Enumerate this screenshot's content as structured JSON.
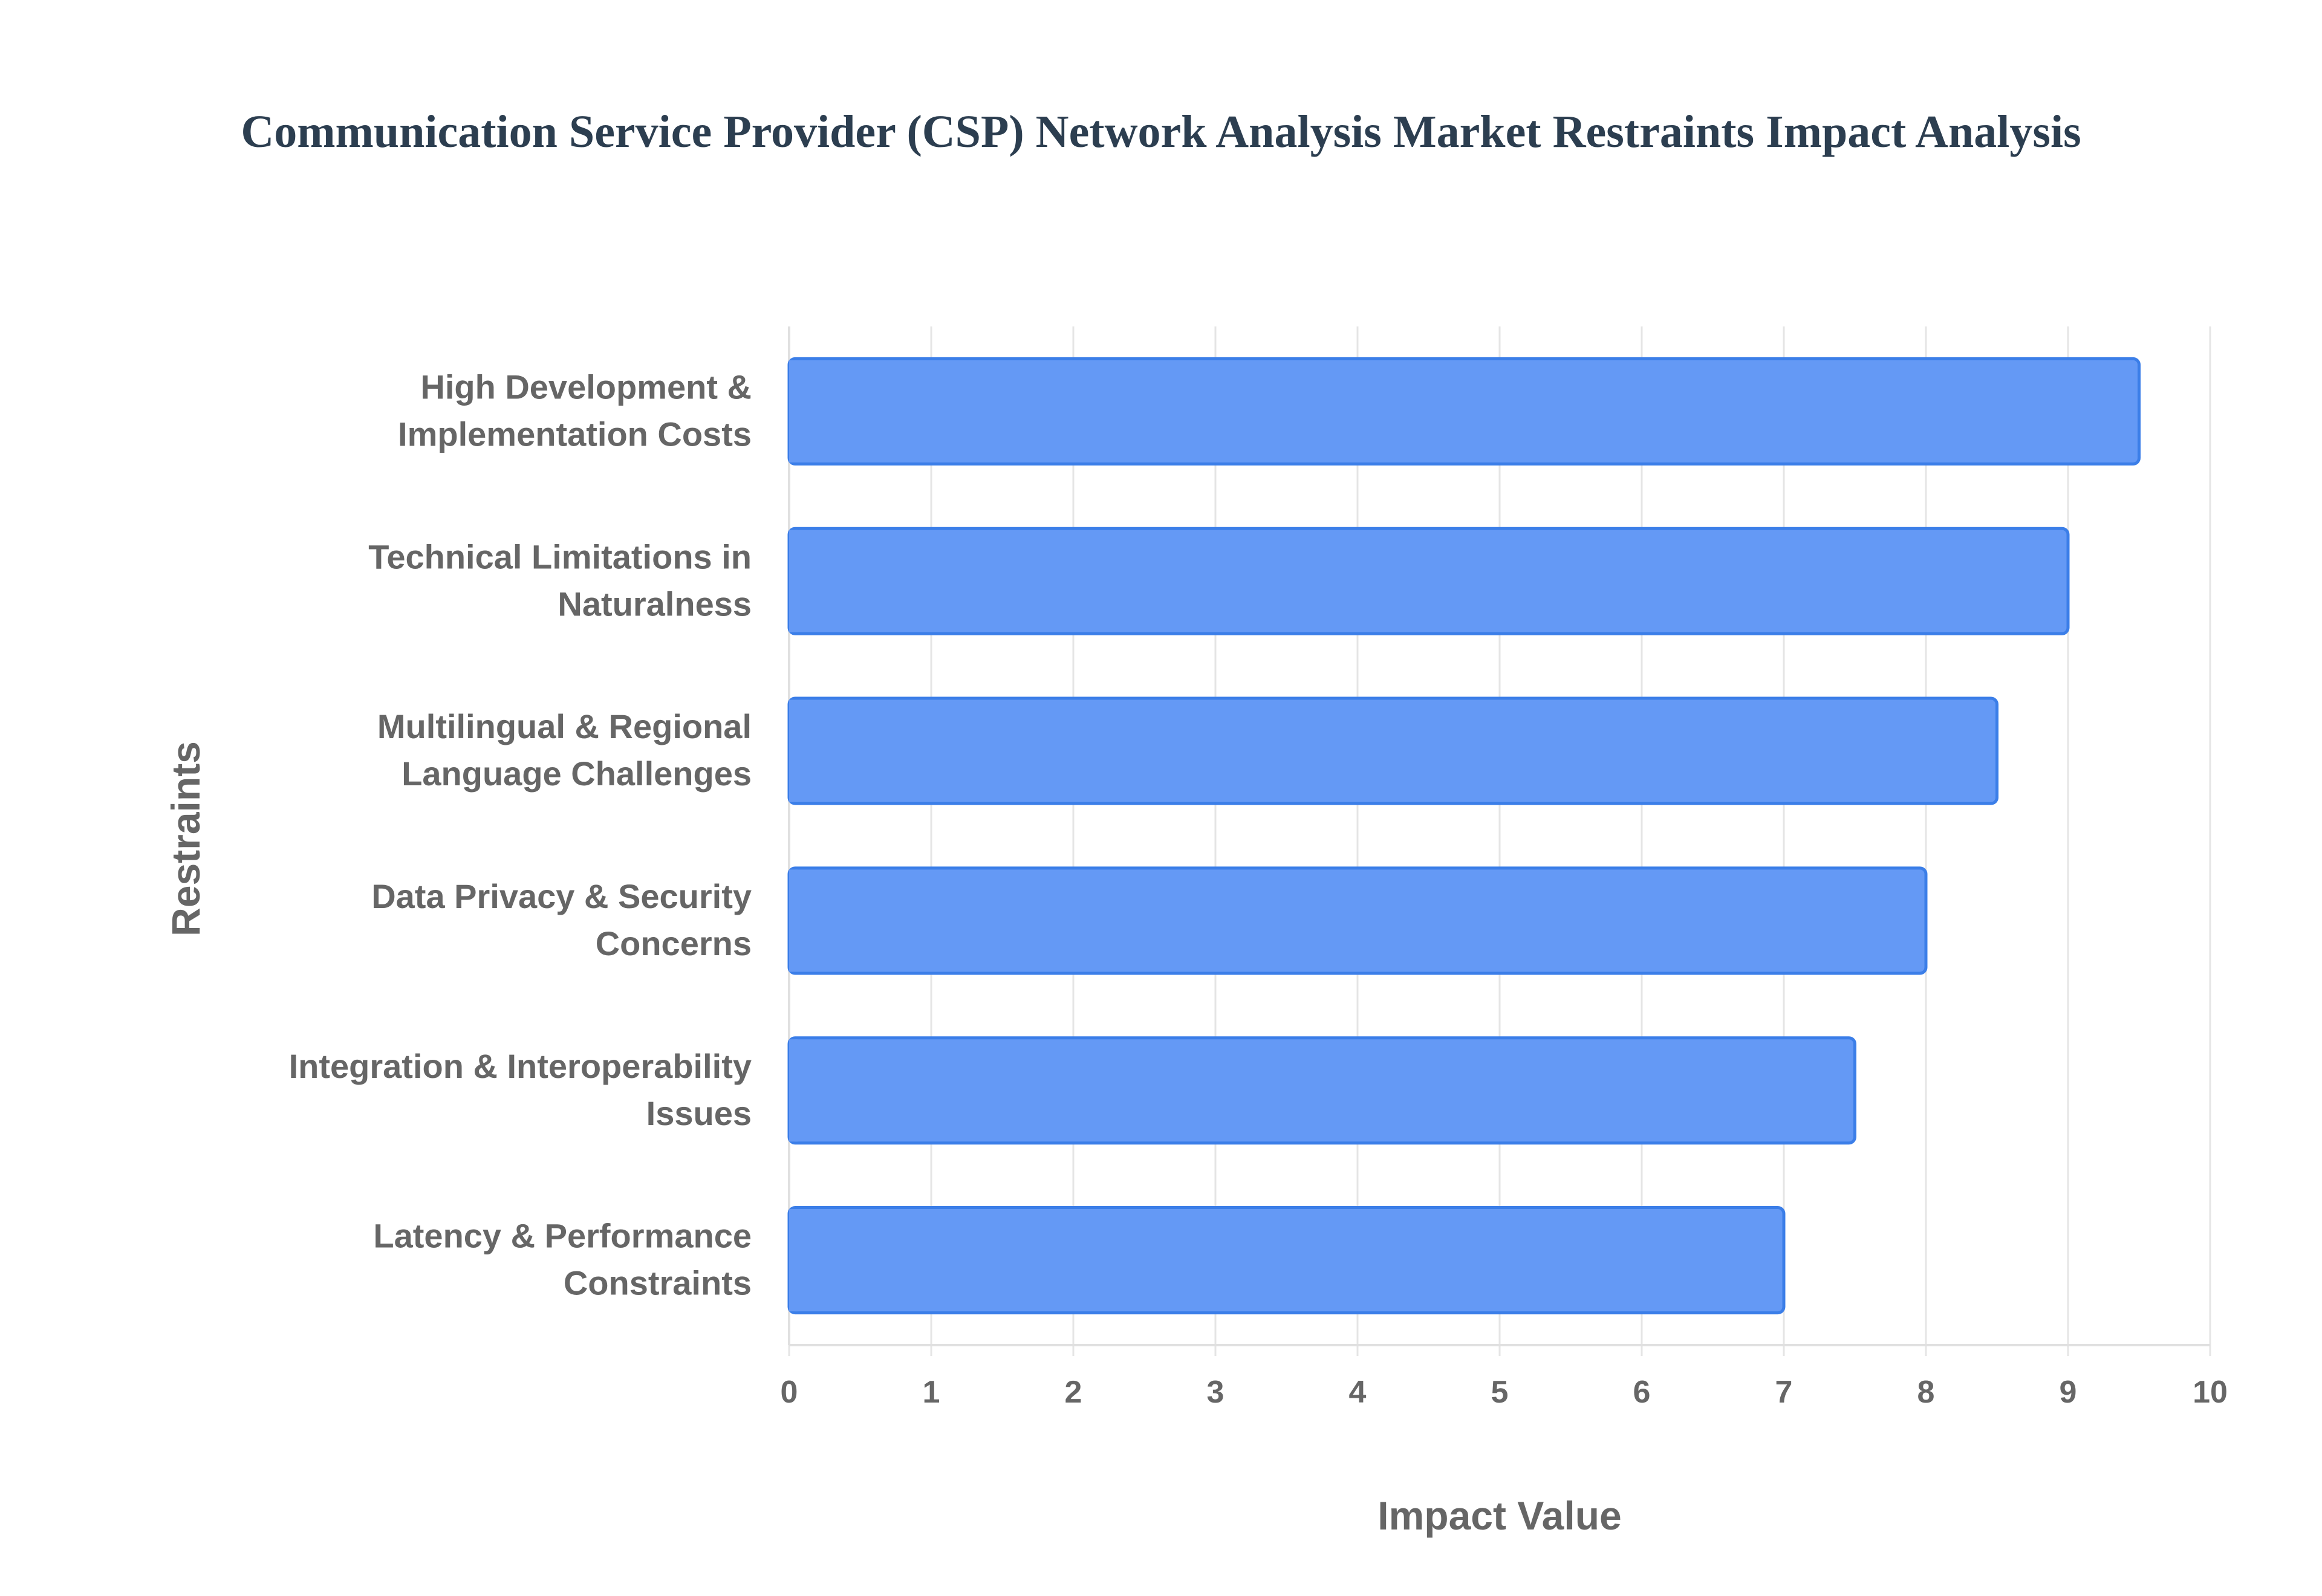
{
  "chart_data": {
    "type": "bar",
    "orientation": "horizontal",
    "title": "Communication Service Provider (CSP) Network Analysis Market Restraints Impact Analysis",
    "xlabel": "Impact Value",
    "ylabel": "Restraints",
    "xlim": [
      0,
      10
    ],
    "xticks": [
      "0",
      "1",
      "2",
      "3",
      "4",
      "5",
      "6",
      "7",
      "8",
      "9",
      "10"
    ],
    "categories": [
      [
        "High Development &",
        "Implementation Costs"
      ],
      [
        "Technical Limitations in",
        "Naturalness"
      ],
      [
        "Multilingual & Regional",
        "Language Challenges"
      ],
      [
        "Data Privacy & Security",
        "Concerns"
      ],
      [
        "Integration & Interoperability",
        "Issues"
      ],
      [
        "Latency & Performance",
        "Constraints"
      ]
    ],
    "values": [
      9.5,
      9.0,
      8.5,
      8.0,
      7.5,
      7.0
    ],
    "grid": true,
    "colors": {
      "bar_fill": "#6499f5",
      "bar_border": "#3b7ee8",
      "text": "#666666",
      "title": "#2c3e50"
    }
  }
}
